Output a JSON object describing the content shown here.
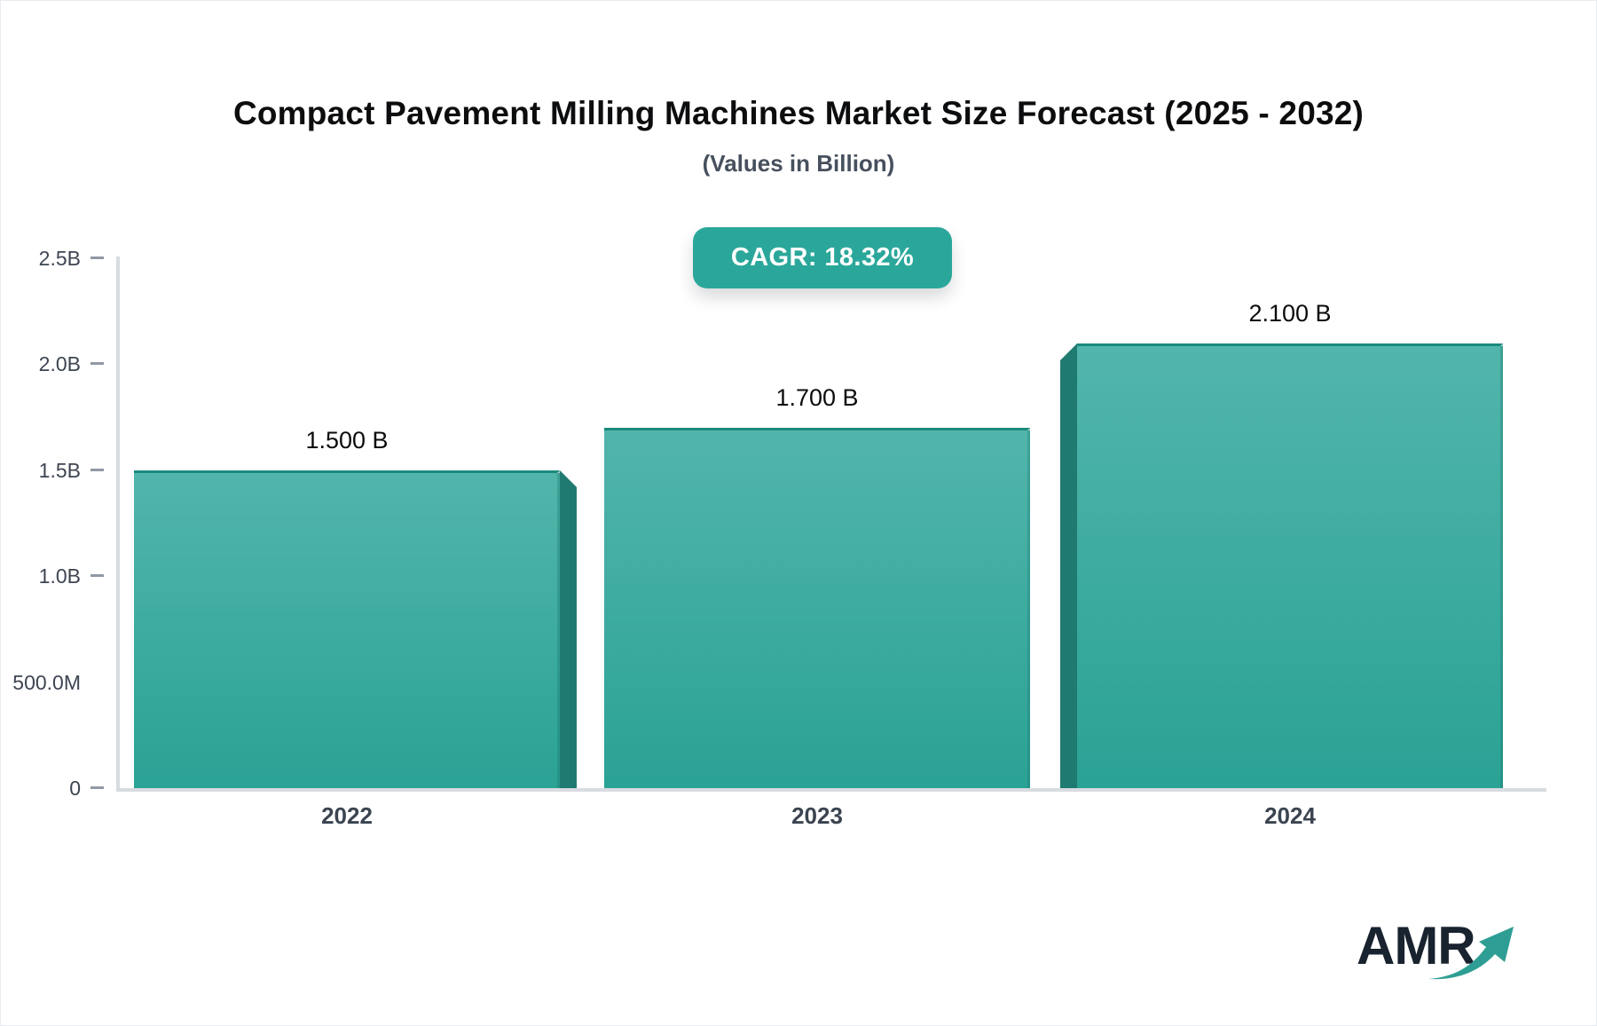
{
  "chart_data": {
    "type": "bar",
    "title": "Compact Pavement Milling Machines Market Size Forecast (2025 - 2032)",
    "subtitle": "(Values in Billion)",
    "cagr_label": "CAGR: 18.32%",
    "categories": [
      "2022",
      "2023",
      "2024"
    ],
    "values": [
      1.5,
      1.7,
      2.1
    ],
    "value_labels": [
      "1.500 B",
      "1.700 B",
      "2.100 B"
    ],
    "ylim": [
      0,
      2.5
    ],
    "yticks": [
      {
        "label": "2.5B",
        "value": 2.5,
        "dash": true
      },
      {
        "label": "2.0B",
        "value": 2.0,
        "dash": true
      },
      {
        "label": "1.5B",
        "value": 1.5,
        "dash": true
      },
      {
        "label": "1.0B",
        "value": 1.0,
        "dash": true
      },
      {
        "label": "500.0M",
        "value": 0.5,
        "dash": false
      },
      {
        "label": "0",
        "value": 0,
        "dash": true
      }
    ],
    "grid": false,
    "legend": "none",
    "colors": {
      "bar_gradient_top": "#52b5ac",
      "bar_gradient_bottom": "#2aa294",
      "bar_top_edge": "#1b8a7d",
      "bar_side_panel": "#1f7a71",
      "badge_background": "#2aa79a",
      "badge_text": "#ffffff",
      "axis_line": "#d8dbe0",
      "tick_dash": "#9099a5",
      "tick_text": "#3e4552",
      "title_text": "#0c0d0f",
      "subtitle_text": "#47505e"
    }
  },
  "branding": {
    "logo_text": "AMR",
    "logo_text_color": "#19222f",
    "logo_arrow_color": "#2e9e94"
  }
}
